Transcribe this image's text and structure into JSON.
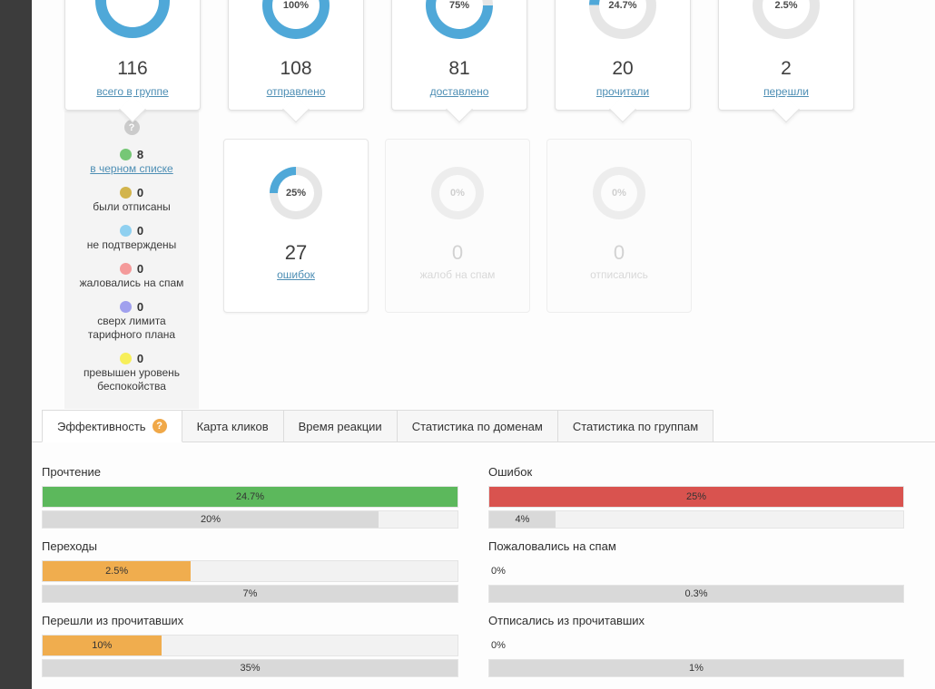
{
  "colors": {
    "donut_blue": "#4fa8d8",
    "green": "#5cb85c",
    "red": "#d9534f",
    "orange": "#f0ad4e",
    "link": "#4d8eb4",
    "sidebar": "#3c3c3c"
  },
  "top_cards": [
    {
      "value": "116",
      "label": "всего в группе",
      "donut_percent": 100
    },
    {
      "value": "108",
      "label": "отправлено",
      "percent": "100%",
      "donut_percent": 100
    },
    {
      "value": "81",
      "label": "доставлено",
      "percent": "75%",
      "donut_percent": 75
    },
    {
      "value": "20",
      "label": "прочитали",
      "percent": "24.7%",
      "donut_percent": 24.7
    },
    {
      "value": "2",
      "label": "перешли",
      "percent": "2.5%",
      "donut_percent": 2.5
    }
  ],
  "legend": {
    "help_icon": "?",
    "items": [
      {
        "color": "#76c776",
        "value": "8",
        "label": "в черном списке"
      },
      {
        "color": "#d2b44c",
        "value": "0",
        "label": "были отписаны"
      },
      {
        "color": "#8fd0f0",
        "value": "0",
        "label": "не подтверждены"
      },
      {
        "color": "#f49a9a",
        "value": "0",
        "label": "жаловались на спам"
      },
      {
        "color": "#a0a0ee",
        "value": "0",
        "label": "сверх лимита тарифного плана"
      },
      {
        "color": "#f7ef5a",
        "value": "0",
        "label": "превышен уровень беспокойства"
      }
    ]
  },
  "mid_cards": [
    {
      "percent": "25%",
      "value": "27",
      "label": "ошибок",
      "active": true,
      "donut_percent": 25
    },
    {
      "percent": "0%",
      "value": "0",
      "label": "жалоб на спам",
      "active": false,
      "donut_percent": 0
    },
    {
      "percent": "0%",
      "value": "0",
      "label": "отписались",
      "active": false,
      "donut_percent": 0
    }
  ],
  "tabs": [
    {
      "label": "Эффективность",
      "help": "?",
      "active": true
    },
    {
      "label": "Карта кликов"
    },
    {
      "label": "Время реакции"
    },
    {
      "label": "Статистика по доменам"
    },
    {
      "label": "Статистика по группам"
    }
  ],
  "metrics": {
    "left": [
      {
        "title": "Прочтение",
        "value": 24.7,
        "value_label": "24.7%",
        "avg": 20,
        "avg_label": "20%",
        "color": "#5cb85c"
      },
      {
        "title": "Переходы",
        "value": 2.5,
        "value_label": "2.5%",
        "avg": 7,
        "avg_label": "7%",
        "color": "#f0ad4e"
      },
      {
        "title": "Перешли из прочитавших",
        "value": 10,
        "value_label": "10%",
        "avg": 35,
        "avg_label": "35%",
        "color": "#f0ad4e"
      }
    ],
    "right": [
      {
        "title": "Ошибок",
        "value": 25,
        "value_label": "25%",
        "avg": 4,
        "avg_label": "4%",
        "color": "#d9534f"
      },
      {
        "title": "Пожаловались на спам",
        "value": 0,
        "value_label": "0%",
        "avg": 0.3,
        "avg_label": "0.3%",
        "color": "#f0ad4e"
      },
      {
        "title": "Отписались из прочитавших",
        "value": 0,
        "value_label": "0%",
        "avg": 1,
        "avg_label": "1%",
        "color": "#f0ad4e"
      }
    ]
  }
}
